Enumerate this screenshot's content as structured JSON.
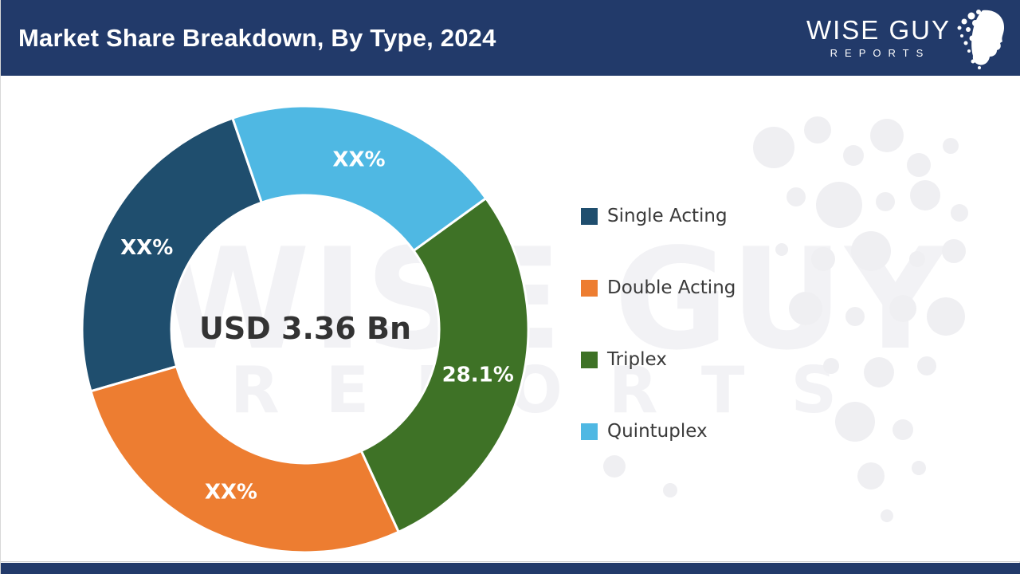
{
  "header": {
    "title": "Market Share Breakdown, By Type, 2024",
    "logo": {
      "brand_line1": "WISE GUY",
      "brand_line2": "REPORTS"
    }
  },
  "watermark": {
    "line1": "WISE GUY",
    "line2": "REPORTS"
  },
  "colors": {
    "header_bar": "#223A6A",
    "footer_bar": "#223A6A",
    "center_text": "#333333",
    "legend_text": "#3A3A3A",
    "slice_label_text": "#FFFFFF"
  },
  "chart_data": {
    "type": "pie",
    "subtype": "donut",
    "title": "Market Share Breakdown, By Type, 2024",
    "center_label": "USD 3.36 Bn",
    "legend_position": "right",
    "start_angle_deg": 109,
    "direction": "counterclockwise",
    "inner_radius_ratio": 0.6,
    "segments": [
      {
        "label": "Single Acting",
        "display_label": "XX%",
        "value_pct": 24.2,
        "color": "#1F4E6E"
      },
      {
        "label": "Double Acting",
        "display_label": "XX%",
        "value_pct": 27.4,
        "color": "#ED7D31"
      },
      {
        "label": "Triplex",
        "display_label": "28.1%",
        "value_pct": 28.1,
        "color": "#3E7226"
      },
      {
        "label": "Quintuplex",
        "display_label": "XX%",
        "value_pct": 20.3,
        "color": "#4FB8E3"
      }
    ]
  }
}
